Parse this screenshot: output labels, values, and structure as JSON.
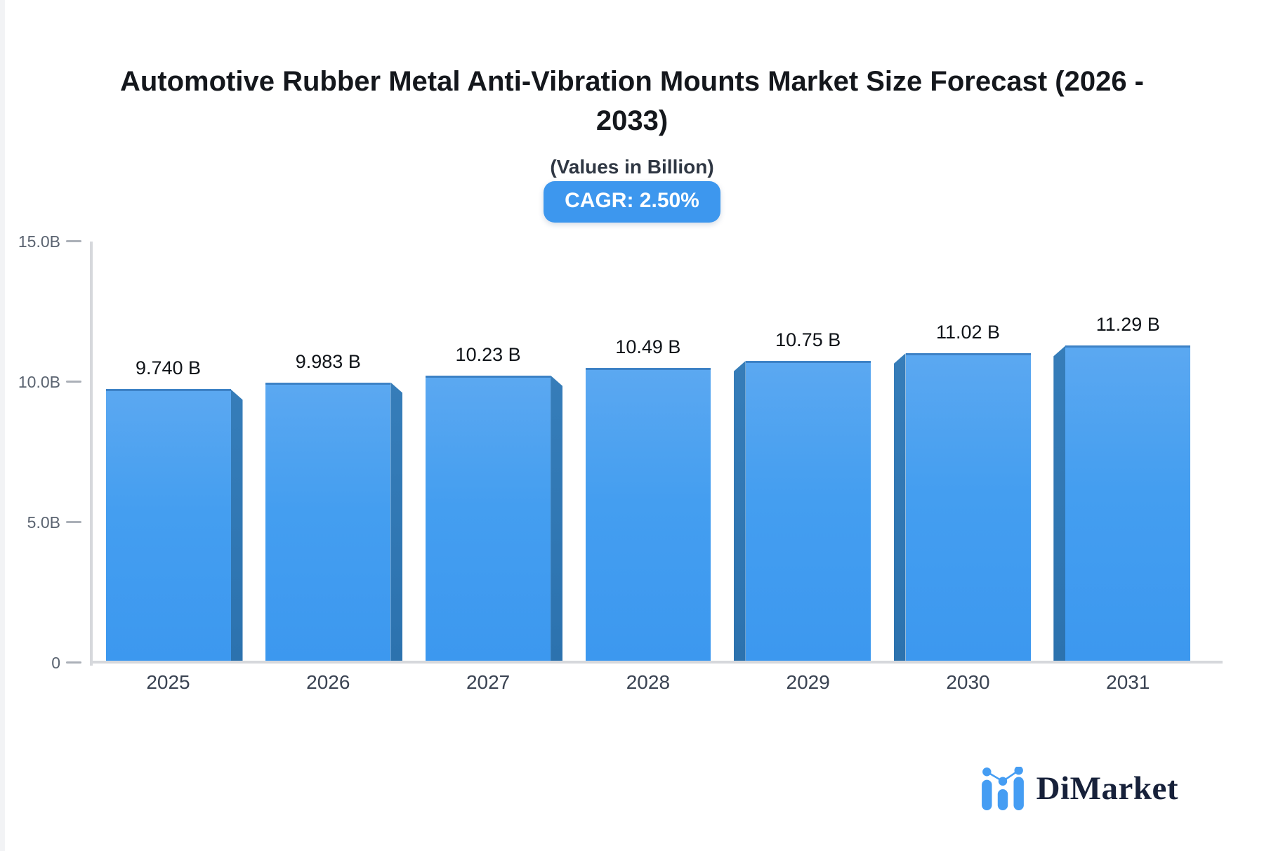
{
  "header": {
    "title_line1": "Automotive Rubber Metal Anti-Vibration Mounts Market Size Forecast (2026 -",
    "title_line2": "2033)",
    "subtitle": "(Values in Billion)",
    "cagr_badge": "CAGR: 2.50%"
  },
  "chart_data": {
    "type": "bar",
    "title": "Automotive Rubber Metal Anti-Vibration Mounts Market Size Forecast (2026 - 2033)",
    "subtitle": "(Values in Billion)",
    "cagr": "2.50%",
    "unit": "Billion",
    "categories": [
      "2025",
      "2026",
      "2027",
      "2028",
      "2029",
      "2030",
      "2031"
    ],
    "values": [
      9.74,
      9.983,
      10.23,
      10.49,
      10.75,
      11.02,
      11.29
    ],
    "value_labels": [
      "9.740 B",
      "9.983 B",
      "10.23 B",
      "10.49 B",
      "10.75 B",
      "11.02 B",
      "11.29 B"
    ],
    "xlabel": "",
    "ylabel": "",
    "ylim": [
      0,
      15
    ],
    "y_ticks": [
      {
        "value": 15,
        "label": "15.0B"
      },
      {
        "value": 10,
        "label": "10.0B"
      },
      {
        "value": 5,
        "label": "5.0B"
      },
      {
        "value": 0,
        "label": "0"
      }
    ],
    "grid": false,
    "legend": false
  },
  "colors": {
    "accent_blue": "#3d97ee",
    "bar_fill_top": "#5ba8f1",
    "bar_fill_bottom": "#3c98ef",
    "bar_side_dark": "#2e75b4",
    "bar_top_edge": "#3d82c6",
    "axis_gray": "#d6d8dc",
    "logo_blue": "#459df3",
    "logo_navy": "#17213a"
  },
  "footer": {
    "brand": "DiMarket"
  }
}
